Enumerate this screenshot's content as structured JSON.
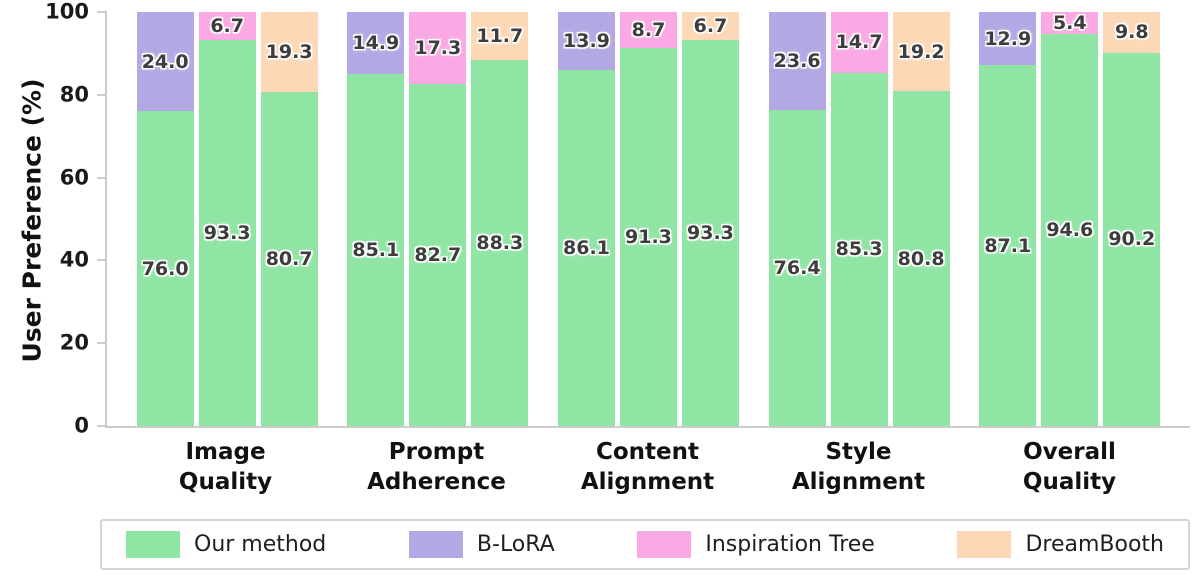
{
  "chart_data": {
    "type": "bar",
    "stacked": true,
    "title": "",
    "xlabel": "",
    "ylabel": "User Preference (%)",
    "ylim": [
      0,
      100
    ],
    "yticks": [
      0,
      20,
      40,
      60,
      80,
      100
    ],
    "grid": false,
    "legend_position": "bottom",
    "legend": [
      {
        "label": "Our method",
        "color": "#90e5a5"
      },
      {
        "label": "B-LoRA",
        "color": "#b4a8e4"
      },
      {
        "label": "Inspiration Tree",
        "color": "#fba9e4"
      },
      {
        "label": "DreamBooth",
        "color": "#fdd8b7"
      }
    ],
    "groups": [
      {
        "category": "Image\nQuality",
        "bars": [
          {
            "competitor": "B-LoRA",
            "our_method": 76.0,
            "competitor_value": 24.0
          },
          {
            "competitor": "Inspiration Tree",
            "our_method": 93.3,
            "competitor_value": 6.7
          },
          {
            "competitor": "DreamBooth",
            "our_method": 80.7,
            "competitor_value": 19.3
          }
        ]
      },
      {
        "category": "Prompt\nAdherence",
        "bars": [
          {
            "competitor": "B-LoRA",
            "our_method": 85.1,
            "competitor_value": 14.9
          },
          {
            "competitor": "Inspiration Tree",
            "our_method": 82.7,
            "competitor_value": 17.3
          },
          {
            "competitor": "DreamBooth",
            "our_method": 88.3,
            "competitor_value": 11.7
          }
        ]
      },
      {
        "category": "Content\nAlignment",
        "bars": [
          {
            "competitor": "B-LoRA",
            "our_method": 86.1,
            "competitor_value": 13.9
          },
          {
            "competitor": "Inspiration Tree",
            "our_method": 91.3,
            "competitor_value": 8.7
          },
          {
            "competitor": "DreamBooth",
            "our_method": 93.3,
            "competitor_value": 6.7
          }
        ]
      },
      {
        "category": "Style\nAlignment",
        "bars": [
          {
            "competitor": "B-LoRA",
            "our_method": 76.4,
            "competitor_value": 23.6
          },
          {
            "competitor": "Inspiration Tree",
            "our_method": 85.3,
            "competitor_value": 14.7
          },
          {
            "competitor": "DreamBooth",
            "our_method": 80.8,
            "competitor_value": 19.2
          }
        ]
      },
      {
        "category": "Overall\nQuality",
        "bars": [
          {
            "competitor": "B-LoRA",
            "our_method": 87.1,
            "competitor_value": 12.9
          },
          {
            "competitor": "Inspiration Tree",
            "our_method": 94.6,
            "competitor_value": 5.4
          },
          {
            "competitor": "DreamBooth",
            "our_method": 90.2,
            "competitor_value": 9.8
          }
        ]
      }
    ]
  }
}
